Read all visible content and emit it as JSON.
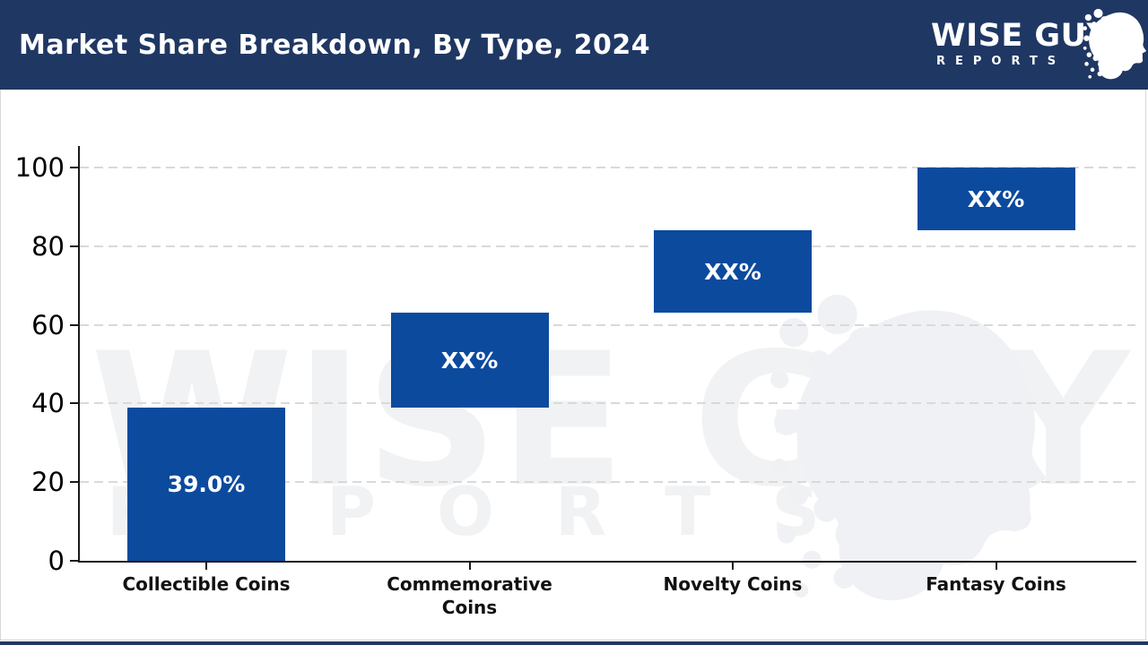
{
  "header": {
    "title": "Market Share Breakdown, By Type, 2024",
    "logo": {
      "line1": "WISE GUY",
      "line2": "REPORTS"
    }
  },
  "watermark": {
    "line1": "WISE GUY",
    "line2": "REPORTS"
  },
  "chart_data": {
    "type": "bar",
    "subtype": "waterfall",
    "title": "Market Share Breakdown, By Type, 2024",
    "categories": [
      "Collectible Coins",
      "Commemorative Coins",
      "Novelty Coins",
      "Fantasy Coins"
    ],
    "category_label_lines": [
      [
        "Collectible Coins"
      ],
      [
        "Commemorative",
        "Coins"
      ],
      [
        "Novelty Coins"
      ],
      [
        "Fantasy Coins"
      ]
    ],
    "segments": [
      {
        "category": "Collectible Coins",
        "start": 0,
        "end": 39,
        "label": "39.0%"
      },
      {
        "category": "Commemorative Coins",
        "start": 39,
        "end": 63,
        "label": "XX%"
      },
      {
        "category": "Novelty Coins",
        "start": 63,
        "end": 84,
        "label": "XX%"
      },
      {
        "category": "Fantasy Coins",
        "start": 84,
        "end": 100,
        "label": "XX%"
      }
    ],
    "xlabel": "",
    "ylabel": "",
    "yticks": [
      0,
      20,
      40,
      60,
      80,
      100
    ],
    "ylim": [
      0,
      105
    ],
    "grid": "horizontal-dashed",
    "legend": "none"
  },
  "colors": {
    "header_bg": "#1f3763",
    "footer_bg": "#1f3763",
    "bar": "#0c4a9e",
    "bar_label": "#ffffff",
    "grid": "#d9d9d9",
    "axis": "#1a1a1a",
    "tick_label": "#000000",
    "category_label": "#111111",
    "watermark": "#f1f2f4",
    "background": "#ffffff"
  }
}
